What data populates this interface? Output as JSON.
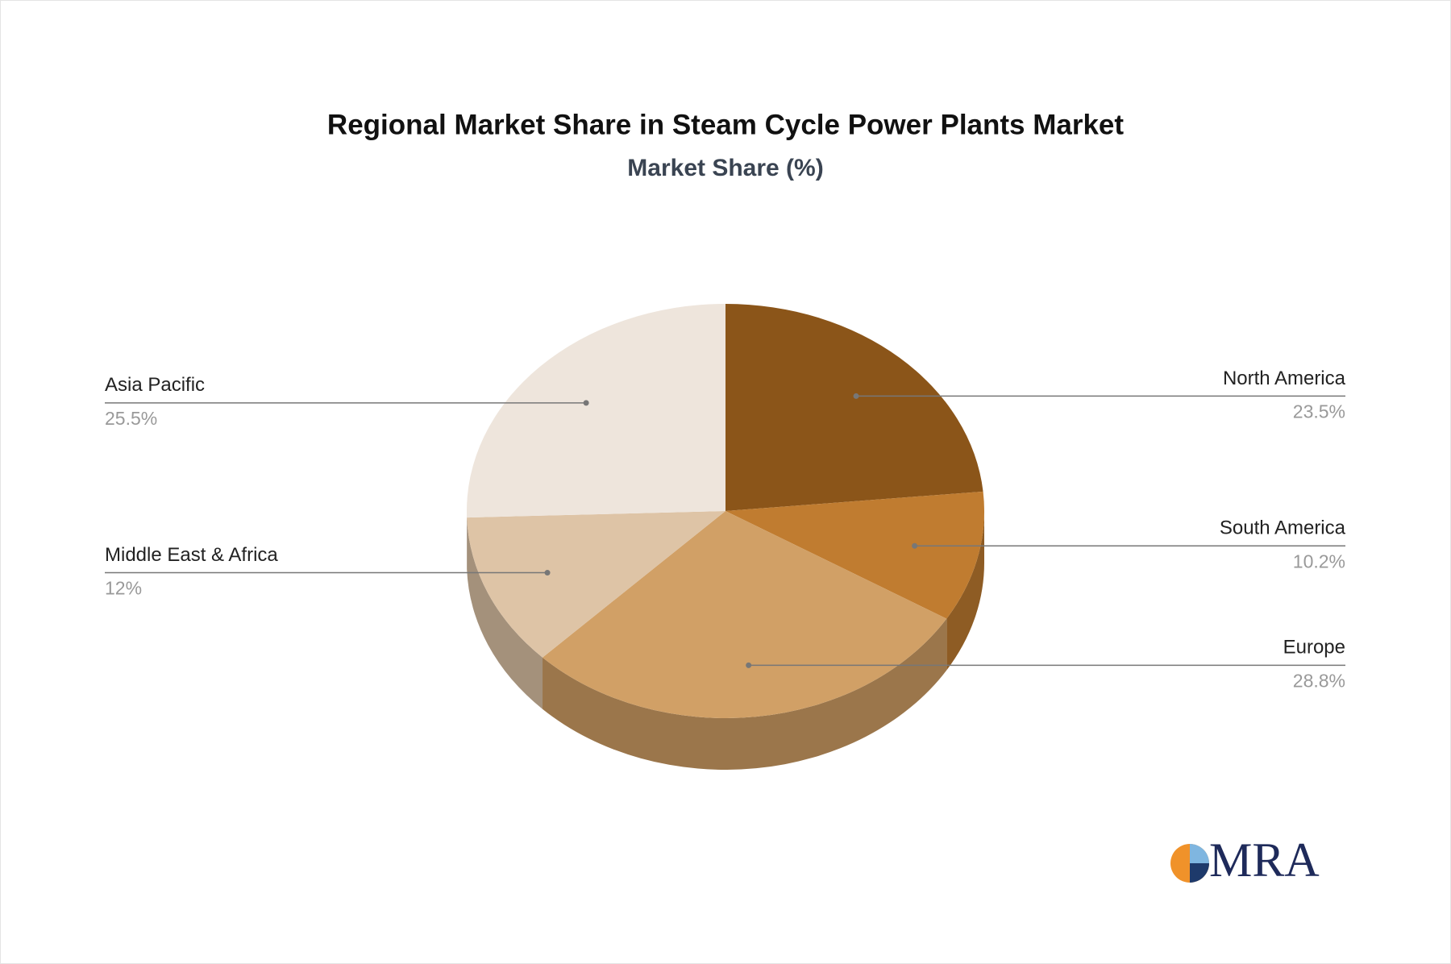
{
  "chart_data": {
    "type": "pie",
    "title": "Regional Market Share in Steam Cycle Power Plants Market",
    "subtitle": "Market Share (%)",
    "categories": [
      "North America",
      "South America",
      "Europe",
      "Middle East & Africa",
      "Asia Pacific"
    ],
    "values": [
      23.5,
      10.2,
      28.8,
      12,
      25.5
    ],
    "value_labels": [
      "23.5%",
      "10.2%",
      "28.8%",
      "12%",
      "25.5%"
    ],
    "colors": [
      "#8b5519",
      "#c07c30",
      "#d1a066",
      "#dec4a6",
      "#eee5dc"
    ]
  },
  "brand": "MRA"
}
